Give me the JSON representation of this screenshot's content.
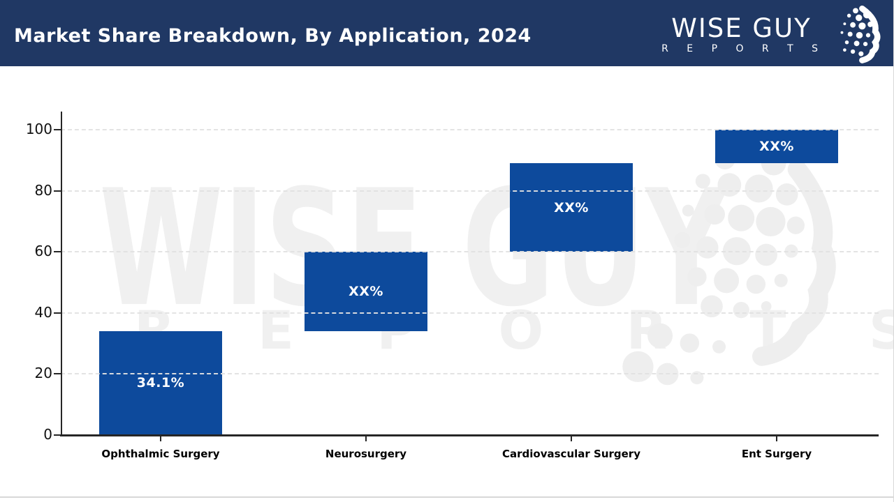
{
  "header": {
    "title": "Market Share Breakdown, By Application, 2024",
    "bg_color": "#203864",
    "brand": {
      "line1": "WISE GUY",
      "line2": "R E P O R T S"
    }
  },
  "watermark": {
    "line1": "WISE GUY",
    "line2": "R E P O R T S"
  },
  "chart_data": {
    "type": "bar",
    "subtype": "waterfall",
    "title": "Market Share Breakdown, By Application, 2024",
    "categories": [
      "Ophthalmic Surgery",
      "Neurosurgery",
      "Cardiovascular Surgery",
      "Ent Surgery"
    ],
    "segments": [
      {
        "category": "Ophthalmic Surgery",
        "start": 0,
        "end": 34.1,
        "label": "34.1%"
      },
      {
        "category": "Neurosurgery",
        "start": 34.1,
        "end": 60,
        "label": "XX%"
      },
      {
        "category": "Cardiovascular Surgery",
        "start": 60,
        "end": 89,
        "label": "XX%"
      },
      {
        "category": "Ent Surgery",
        "start": 89,
        "end": 100,
        "label": "XX%"
      }
    ],
    "y_ticks": [
      0,
      20,
      40,
      60,
      80,
      100
    ],
    "ylim": [
      0,
      106
    ],
    "xlabel": "",
    "ylabel": "",
    "grid": "horizontal-dashed",
    "legend": "none",
    "bar_color": "#0d4a9c",
    "value_label_color": "#ffffff"
  }
}
